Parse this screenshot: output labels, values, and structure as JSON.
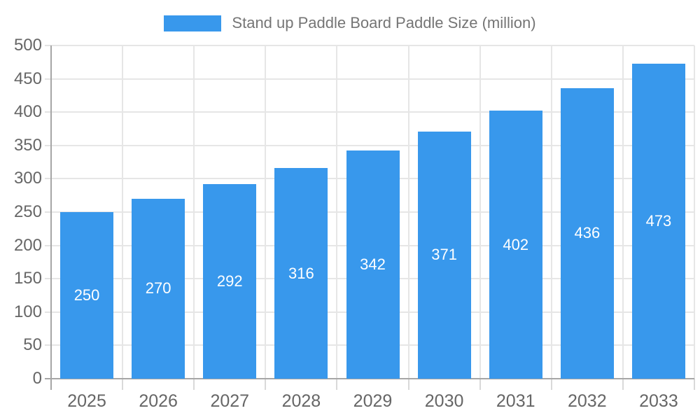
{
  "legend": {
    "label": "Stand up Paddle Board Paddle Size (million)"
  },
  "colors": {
    "bar": "#3898EC",
    "axis_line": "#a6a6a6",
    "gridline": "#e6e6e6",
    "y_tick": "#e3e3e3",
    "x_tick": "#d9d9d9",
    "axis_text": "#666666",
    "legend_text": "#757575",
    "value_text": "#ffffff",
    "background": "#ffffff"
  },
  "chart_data": {
    "type": "bar",
    "title": "Stand up Paddle Board Paddle Size (million)",
    "categories": [
      "2025",
      "2026",
      "2027",
      "2028",
      "2029",
      "2030",
      "2031",
      "2032",
      "2033"
    ],
    "values": [
      250,
      270,
      292,
      316,
      342,
      371,
      402,
      436,
      473
    ],
    "series": [
      {
        "name": "Stand up Paddle Board Paddle Size (million)",
        "values": [
          250,
          270,
          292,
          316,
          342,
          371,
          402,
          436,
          473
        ]
      }
    ],
    "xlabel": "",
    "ylabel": "",
    "ylim": [
      0,
      500
    ],
    "ytick_step": 50,
    "ytick_labels": [
      "0",
      "50",
      "100",
      "150",
      "200",
      "250",
      "300",
      "350",
      "400",
      "450",
      "500"
    ],
    "grid": true,
    "legend_position": "top-center",
    "value_labels": "inside-center"
  }
}
